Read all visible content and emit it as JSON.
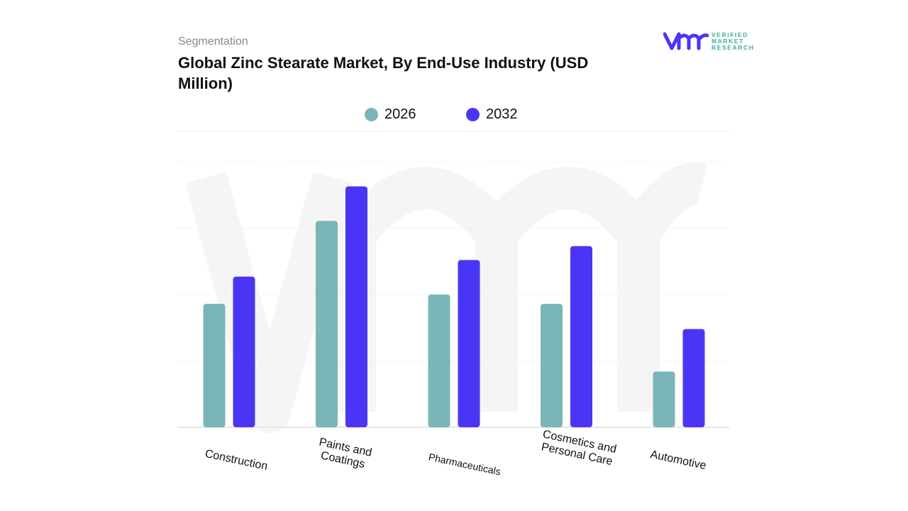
{
  "header": {
    "segment_label": "Segmentation",
    "title": "Global Zinc Stearate Market, By End-Use Industry (USD Million)"
  },
  "logo": {
    "text_lines": [
      "VERIFIED",
      "MARKET",
      "RESEARCH"
    ]
  },
  "chart_data": {
    "type": "bar",
    "title": "Global Zinc Stearate Market, By End-Use Industry (USD Million)",
    "categories": [
      "Construction",
      "Paints and Coatings",
      "Pharmaceuticals",
      "Cosmetics and Personal Care",
      "Automotive"
    ],
    "series": [
      {
        "name": "2026",
        "color": "#7ab5b8",
        "values": [
          1.86,
          3.11,
          2.0,
          1.86,
          0.84
        ]
      },
      {
        "name": "2032",
        "color": "#4b35f5",
        "values": [
          2.27,
          3.63,
          2.52,
          2.73,
          1.48
        ]
      }
    ],
    "ylim": [
      0,
      4
    ],
    "grid": true,
    "y_tick_labels_shown": false,
    "legend_position": "top"
  }
}
